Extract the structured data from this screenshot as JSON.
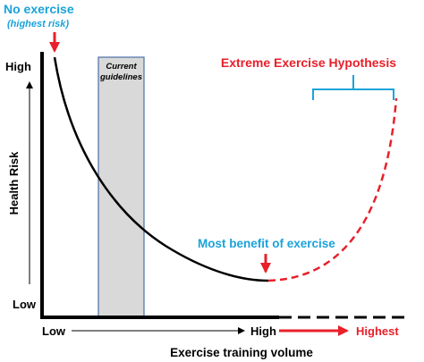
{
  "no_exercise": {
    "title": "No exercise",
    "subtitle": "(highest risk)"
  },
  "guidelines_label": {
    "line1": "Current",
    "line2": "guidelines"
  },
  "hypothesis_label": "Extreme Exercise Hypothesis",
  "benefit_label": "Most benefit of exercise",
  "y_axis": {
    "title": "Health Risk",
    "high_label": "High",
    "low_label": "Low"
  },
  "x_axis": {
    "title": "Exercise training volume",
    "low_label": "Low",
    "high_label": "High",
    "highest_label": "Highest"
  },
  "colors": {
    "blue": "#1aa3d9",
    "red": "#e8202a",
    "black": "#000000",
    "band_fill": "#d9d9d9",
    "band_stroke": "#4a6fa5"
  }
}
